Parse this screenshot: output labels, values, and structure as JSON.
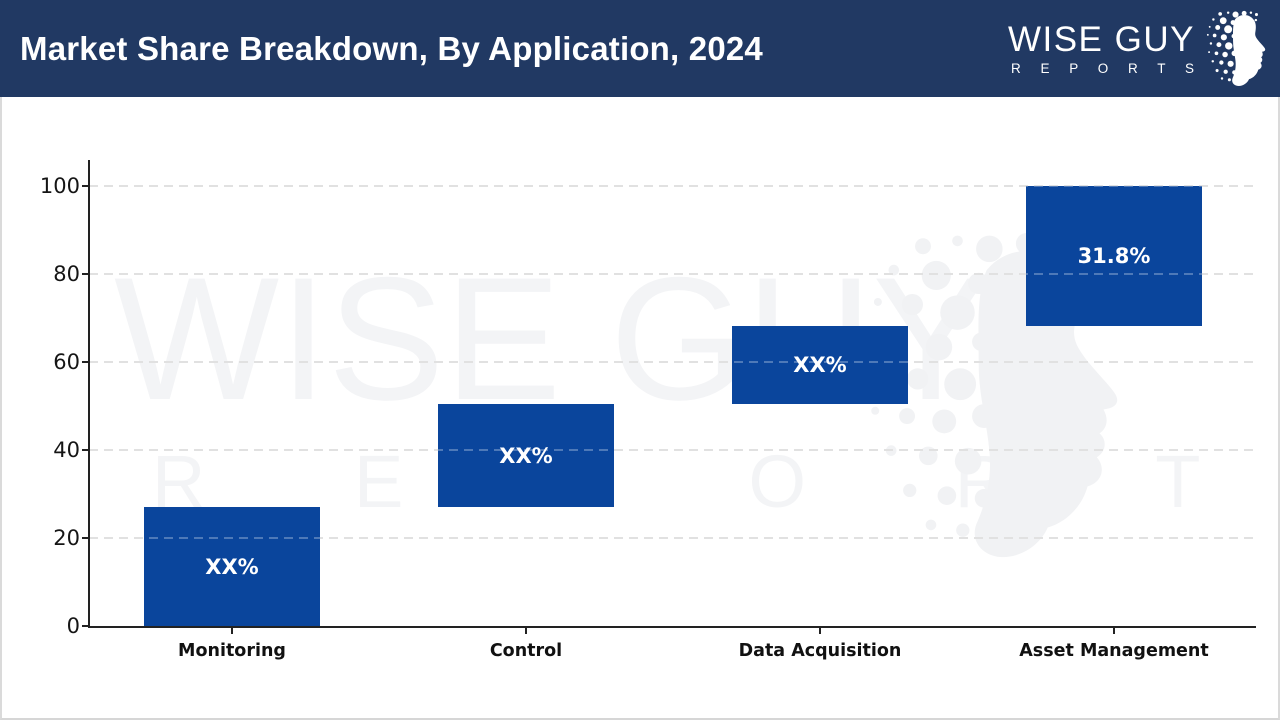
{
  "header": {
    "title": "Market Share Breakdown, By Application, 2024",
    "brand": {
      "line1": "WISE GUY",
      "line2": "R E P O R T S"
    },
    "bg_color": "#213963"
  },
  "watermark": {
    "line1": "WISE GUY",
    "line2": "R E P O R T S"
  },
  "chart_data": {
    "type": "bar",
    "subtype": "waterfall",
    "title": "Market Share Breakdown, By Application, 2024",
    "categories": [
      "Monitoring",
      "Control",
      "Data Acquisition",
      "Asset Management"
    ],
    "segments": [
      {
        "category": "Monitoring",
        "start": 0,
        "end": 27.0,
        "value": 27.0,
        "label": "XX%"
      },
      {
        "category": "Control",
        "start": 27.0,
        "end": 50.5,
        "value": 23.5,
        "label": "XX%"
      },
      {
        "category": "Data Acquisition",
        "start": 50.5,
        "end": 68.2,
        "value": 17.7,
        "label": "XX%"
      },
      {
        "category": "Asset Management",
        "start": 68.2,
        "end": 100,
        "value": 31.8,
        "label": "31.8%"
      }
    ],
    "y_ticks": [
      0,
      20,
      40,
      60,
      80,
      100
    ],
    "ylim": [
      0,
      107
    ],
    "xlabel": "",
    "ylabel": "",
    "bar_color": "#0a459c",
    "grid": "horizontal-dashed",
    "gridline_color": "#d6d6d6",
    "legend": "none"
  }
}
